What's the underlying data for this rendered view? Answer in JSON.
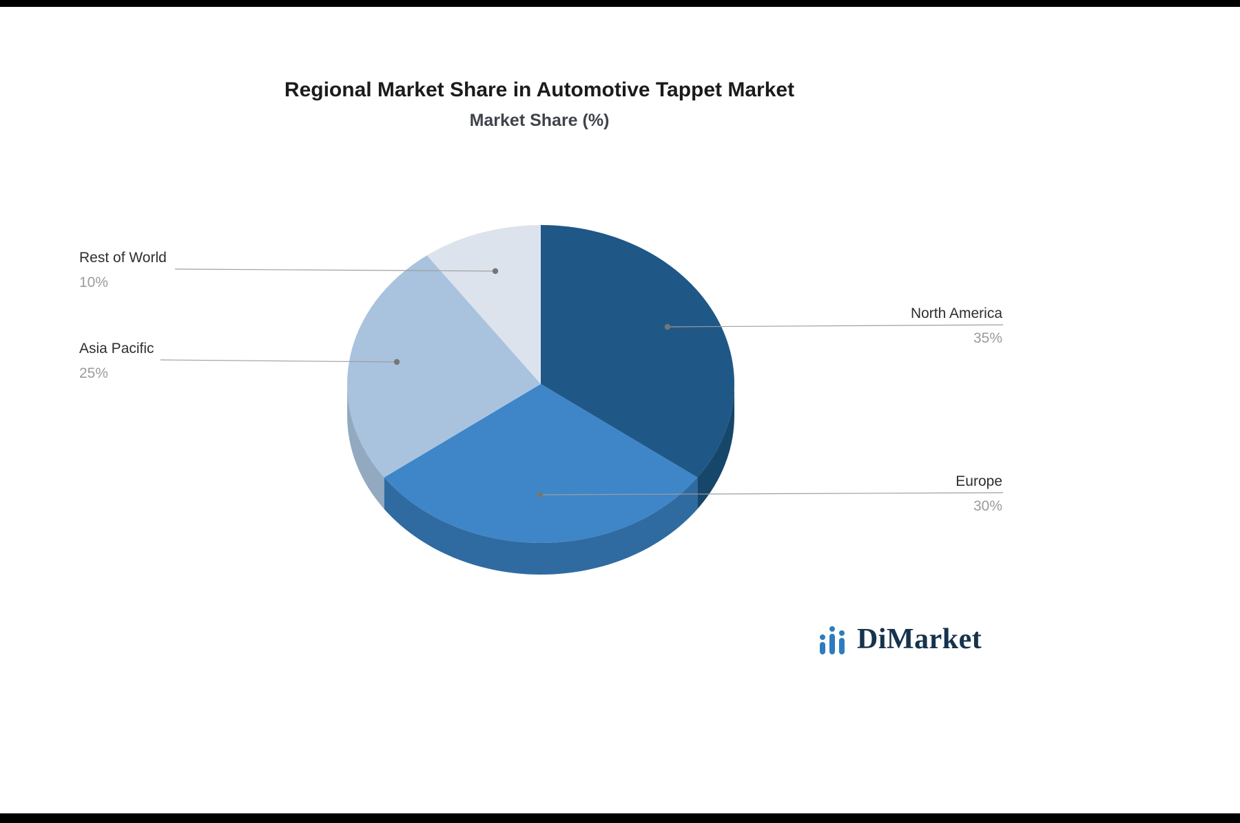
{
  "page": {
    "background_color": "#ffffff",
    "frame_bar_color": "#000000"
  },
  "chart_data": {
    "type": "pie",
    "effect": "3d",
    "title": "Regional Market Share in Automotive Tappet Market",
    "subtitle": "Market Share (%)",
    "unit": "%",
    "start_angle_deg": 0,
    "direction": "clockwise",
    "legend_position": "none",
    "labels_style": "outside-with-leader-lines",
    "slices": [
      {
        "label": "North America",
        "value": 35,
        "pct_label": "35%",
        "color": "#1f5887",
        "side_color": "#17466b"
      },
      {
        "label": "Europe",
        "value": 30,
        "pct_label": "30%",
        "color": "#3e86c7",
        "side_color": "#2f6ba1"
      },
      {
        "label": "Asia Pacific",
        "value": 25,
        "pct_label": "25%",
        "color": "#a9c3de",
        "side_color": "#92a9c0"
      },
      {
        "label": "Rest of World",
        "value": 10,
        "pct_label": "10%",
        "color": "#dde3ec",
        "side_color": "#c2cbd8"
      }
    ]
  },
  "branding": {
    "name": "DiMarket",
    "icon": "bar-chart-icon",
    "text_color": "#16334e",
    "icon_color": "#2e7cc0"
  }
}
